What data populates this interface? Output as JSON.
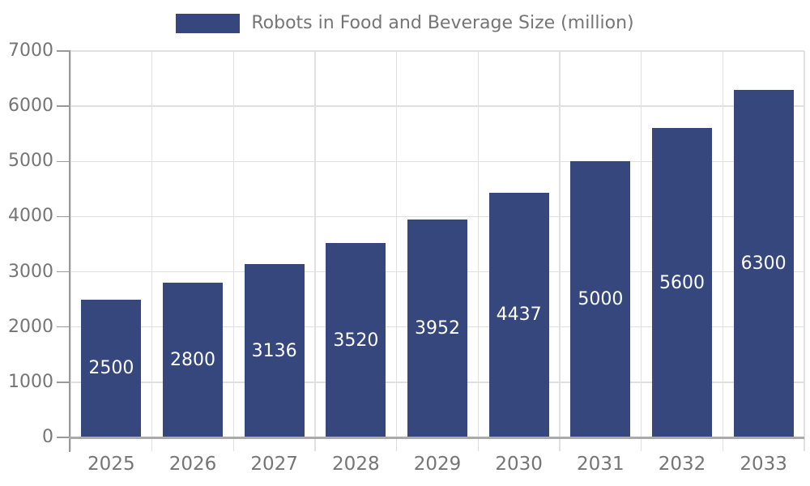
{
  "chart_data": {
    "type": "bar",
    "title": "Robots in Food and Beverage Size (million)",
    "categories": [
      "2025",
      "2026",
      "2027",
      "2028",
      "2029",
      "2030",
      "2031",
      "2032",
      "2033"
    ],
    "series": [
      {
        "name": "Robots in Food and Beverage Size (million)",
        "values": [
          2500,
          2800,
          3136,
          3520,
          3952,
          4437,
          5000,
          5600,
          6300
        ]
      }
    ],
    "xlabel": "",
    "ylabel": "",
    "ylim": [
      0,
      7000
    ],
    "yticks": [
      0,
      1000,
      2000,
      3000,
      4000,
      5000,
      6000,
      7000
    ],
    "grid": true,
    "legend_position": "top",
    "value_labels": "inside-center"
  },
  "colors": {
    "bar": "#36477E",
    "value_label": "#FFFFFF",
    "tick_label": "#757575",
    "legend_text": "#757575",
    "gridline": "#E0E0E0",
    "axis_line": "#999999",
    "background": "#FFFFFF"
  }
}
